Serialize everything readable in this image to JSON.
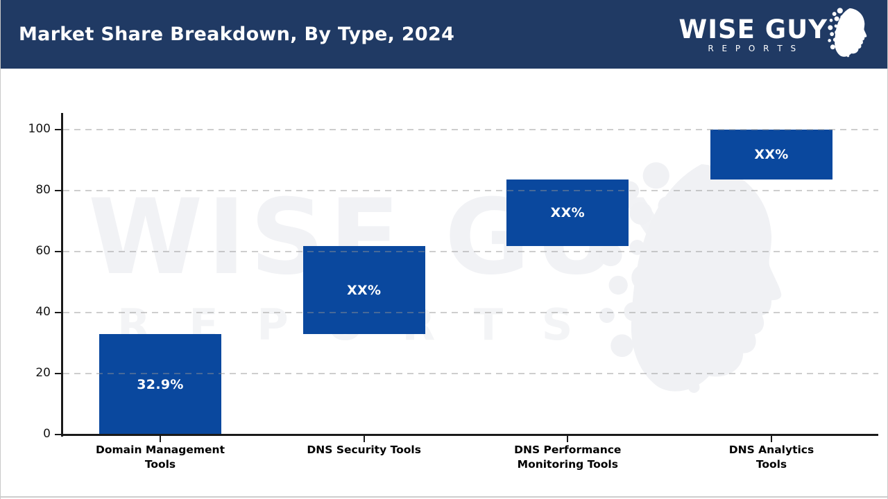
{
  "header": {
    "title": "Market Share Breakdown, By Type, 2024",
    "logo_line1": "WISE GUY",
    "logo_line2": "R E P O R T S"
  },
  "watermark": {
    "line1": "WISE GUY",
    "line2": "R E P O R T S"
  },
  "colors": {
    "header_bg": "#203a64",
    "bar": "#0a489e",
    "bar_label": "#ffffff",
    "axis": "#1a1a1a",
    "gridline": "rgba(145,145,145,0.45)",
    "watermark_gray": "#f1f2f5"
  },
  "icons": {
    "logo_face": "face-profile-dots-icon",
    "chart_face_watermark": "face-profile-dots-icon"
  },
  "chart_data": {
    "type": "bar",
    "subtype": "waterfall-segmented",
    "title": "Market Share Breakdown, By Type, 2024",
    "categories": [
      "Domain Management Tools",
      "DNS Security Tools",
      "DNS Performance Monitoring Tools",
      "DNS Analytics Tools"
    ],
    "category_lines": [
      [
        "Domain Management",
        "Tools"
      ],
      [
        "DNS Security Tools"
      ],
      [
        "DNS Performance",
        "Monitoring Tools"
      ],
      [
        "DNS Analytics",
        "Tools"
      ]
    ],
    "segments": [
      {
        "category": "Domain Management Tools",
        "start": 0,
        "end": 32.9,
        "label": "32.9%"
      },
      {
        "category": "DNS Security Tools",
        "start": 32.9,
        "end": 61.8,
        "label": "XX%"
      },
      {
        "category": "DNS Performance Monitoring Tools",
        "start": 61.8,
        "end": 83.6,
        "label": "XX%"
      },
      {
        "category": "DNS Analytics Tools",
        "start": 83.6,
        "end": 100,
        "label": "XX%"
      }
    ],
    "ylim": [
      0,
      100
    ],
    "yticks": [
      0,
      20,
      40,
      60,
      80,
      100
    ],
    "xlabel": "",
    "ylabel": "",
    "grid": "horizontal-dashed",
    "legend": "none"
  }
}
